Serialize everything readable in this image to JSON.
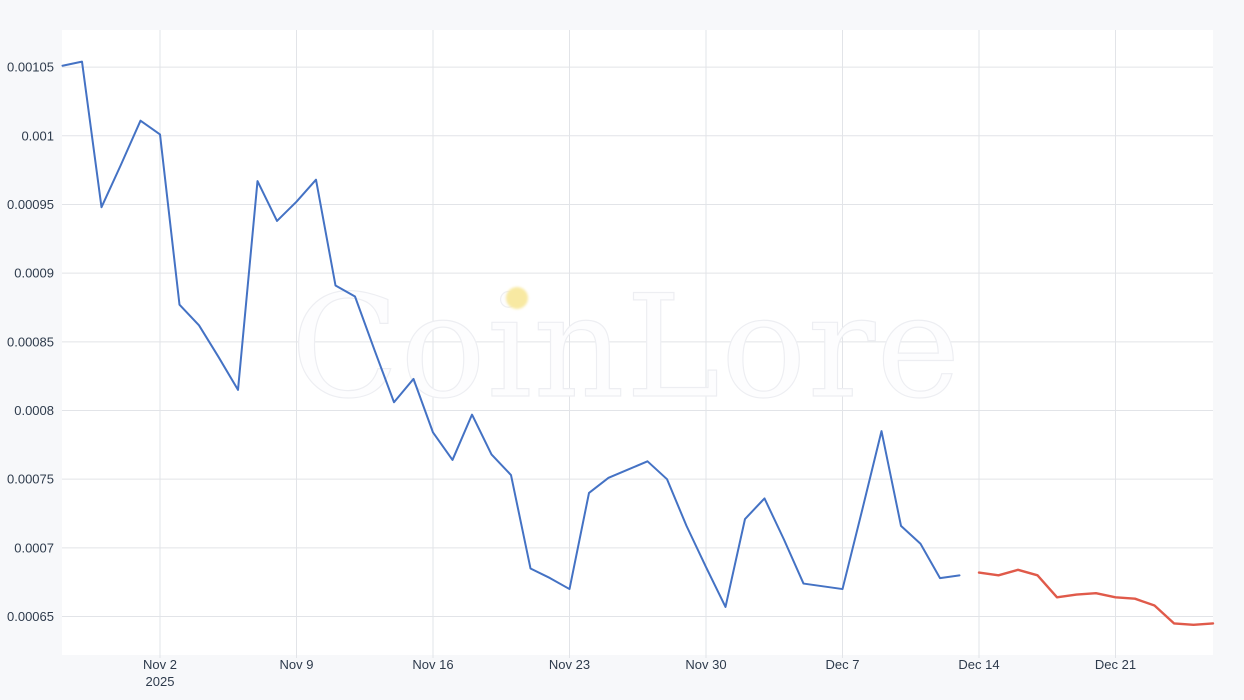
{
  "background": "#f7f8fa",
  "plot_background": "#ffffff",
  "grid_color": "#e2e4e8",
  "label_color": "#2e3b4c",
  "watermark": {
    "text": "CoinLore",
    "dot_color": "#f8e9a2"
  },
  "chart_data": {
    "type": "line",
    "title": "",
    "xlabel": "",
    "ylabel": "",
    "grid": true,
    "legend": "none",
    "x_unit": "day",
    "x_start_label": "Oct 28",
    "xlim_days": [
      0,
      59
    ],
    "ylim": [
      0.000622,
      0.001077
    ],
    "y_ticks": [
      {
        "value": 0.00065,
        "label": "0.00065"
      },
      {
        "value": 0.0007,
        "label": "0.0007"
      },
      {
        "value": 0.00075,
        "label": "0.00075"
      },
      {
        "value": 0.0008,
        "label": "0.0008"
      },
      {
        "value": 0.00085,
        "label": "0.00085"
      },
      {
        "value": 0.0009,
        "label": "0.0009"
      },
      {
        "value": 0.00095,
        "label": "0.00095"
      },
      {
        "value": 0.001,
        "label": "0.001"
      },
      {
        "value": 0.00105,
        "label": "0.00105"
      }
    ],
    "x_ticks": [
      {
        "day": 5,
        "label": "Nov 2",
        "sub": "2025"
      },
      {
        "day": 12,
        "label": "Nov 9"
      },
      {
        "day": 19,
        "label": "Nov 16"
      },
      {
        "day": 26,
        "label": "Nov 23"
      },
      {
        "day": 33,
        "label": "Nov 30"
      },
      {
        "day": 40,
        "label": "Dec 7"
      },
      {
        "day": 47,
        "label": "Dec 14"
      },
      {
        "day": 54,
        "label": "Dec 21"
      }
    ],
    "series": [
      {
        "name": "price-history",
        "color": "#4472c4",
        "stroke_width": 2,
        "start_day": 0,
        "dates": [
          "Oct 28",
          "Oct 29",
          "Oct 30",
          "Oct 31",
          "Nov 1",
          "Nov 2",
          "Nov 3",
          "Nov 4",
          "Nov 5",
          "Nov 6",
          "Nov 7",
          "Nov 8",
          "Nov 9",
          "Nov 10",
          "Nov 11",
          "Nov 12",
          "Nov 13",
          "Nov 14",
          "Nov 15",
          "Nov 16",
          "Nov 17",
          "Nov 18",
          "Nov 19",
          "Nov 20",
          "Nov 21",
          "Nov 22",
          "Nov 23",
          "Nov 24",
          "Nov 25",
          "Nov 26",
          "Nov 27",
          "Nov 28",
          "Nov 29",
          "Nov 30",
          "Dec 1",
          "Dec 2",
          "Dec 3",
          "Dec 4",
          "Dec 5",
          "Dec 6",
          "Dec 7",
          "Dec 8",
          "Dec 9",
          "Dec 10",
          "Dec 11",
          "Dec 12",
          "Dec 13"
        ],
        "values": [
          0.001051,
          0.001054,
          0.000948,
          0.000979,
          0.001011,
          0.001001,
          0.000877,
          0.000862,
          0.000839,
          0.000815,
          0.000967,
          0.000938,
          0.000952,
          0.000968,
          0.000891,
          0.000883,
          0.000844,
          0.000806,
          0.000823,
          0.000784,
          0.000764,
          0.000797,
          0.000768,
          0.000753,
          0.000685,
          0.000678,
          0.00067,
          0.00074,
          0.000751,
          0.000757,
          0.000763,
          0.00075,
          0.000716,
          0.000686,
          0.000657,
          0.000721,
          0.000736,
          0.000706,
          0.000674,
          0.000672,
          0.00067,
          0.000727,
          0.000785,
          0.000716,
          0.000703,
          0.000678,
          0.00068
        ]
      },
      {
        "name": "price-prediction",
        "color": "#e05a4a",
        "stroke_width": 2.4,
        "start_day": 47,
        "dates": [
          "Dec 14",
          "Dec 15",
          "Dec 16",
          "Dec 17",
          "Dec 18",
          "Dec 19",
          "Dec 20",
          "Dec 21",
          "Dec 22",
          "Dec 23",
          "Dec 24",
          "Dec 25",
          "Dec 26"
        ],
        "values": [
          0.000682,
          0.00068,
          0.000684,
          0.00068,
          0.000664,
          0.000666,
          0.000667,
          0.000664,
          0.000663,
          0.000658,
          0.000645,
          0.000644,
          0.000645
        ]
      }
    ]
  }
}
